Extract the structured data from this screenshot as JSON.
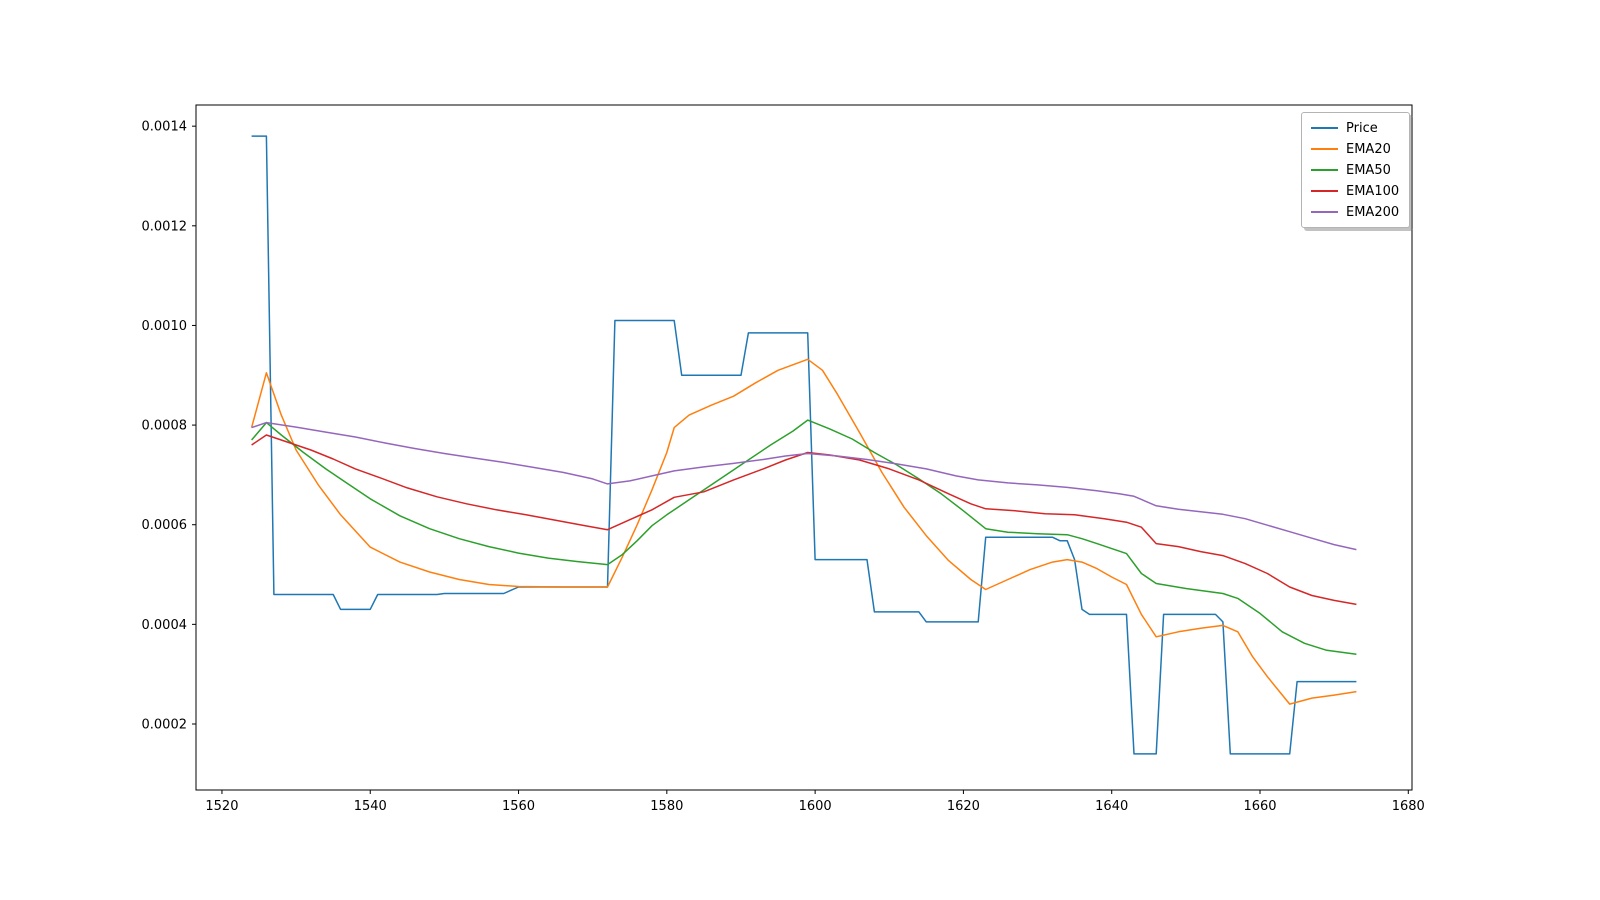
{
  "chart_data": {
    "type": "line",
    "title": "",
    "xlabel": "",
    "ylabel": "",
    "grid": false,
    "legend_position": "upper right",
    "xlim": [
      1516.5,
      1680.5
    ],
    "ylim": [
      6.75e-05,
      0.0014425
    ],
    "x_ticks": [
      1520,
      1540,
      1560,
      1580,
      1600,
      1620,
      1640,
      1660,
      1680
    ],
    "x_tick_labels": [
      "1520",
      "1540",
      "1560",
      "1580",
      "1600",
      "1620",
      "1640",
      "1660",
      "1680"
    ],
    "y_ticks": [
      0.0002,
      0.0004,
      0.0006,
      0.0008,
      0.001,
      0.0012,
      0.0014
    ],
    "y_tick_labels": [
      "0.0002",
      "0.0004",
      "0.0006",
      "0.0008",
      "0.0010",
      "0.0012",
      "0.0014"
    ],
    "series": [
      {
        "name": "Price",
        "color": "#1f77b4",
        "points": [
          [
            1524,
            0.00138
          ],
          [
            1526,
            0.00138
          ],
          [
            1527,
            0.00046
          ],
          [
            1535,
            0.00046
          ],
          [
            1536,
            0.00043
          ],
          [
            1540,
            0.00043
          ],
          [
            1541,
            0.00046
          ],
          [
            1549,
            0.00046
          ],
          [
            1550,
            0.000462
          ],
          [
            1558,
            0.000462
          ],
          [
            1560,
            0.000475
          ],
          [
            1572,
            0.000475
          ],
          [
            1573,
            0.00101
          ],
          [
            1581,
            0.00101
          ],
          [
            1582,
            0.0009
          ],
          [
            1590,
            0.0009
          ],
          [
            1591,
            0.000985
          ],
          [
            1599,
            0.000985
          ],
          [
            1600,
            0.00053
          ],
          [
            1607,
            0.00053
          ],
          [
            1608,
            0.000425
          ],
          [
            1614,
            0.000425
          ],
          [
            1615,
            0.000405
          ],
          [
            1622,
            0.000405
          ],
          [
            1623,
            0.000575
          ],
          [
            1632,
            0.000575
          ],
          [
            1633,
            0.000568
          ],
          [
            1634,
            0.000568
          ],
          [
            1635,
            0.00053
          ],
          [
            1636,
            0.00043
          ],
          [
            1637,
            0.00042
          ],
          [
            1642,
            0.00042
          ],
          [
            1643,
            0.00014
          ],
          [
            1646,
            0.00014
          ],
          [
            1647,
            0.00042
          ],
          [
            1654,
            0.00042
          ],
          [
            1655,
            0.000405
          ],
          [
            1656,
            0.00014
          ],
          [
            1664,
            0.00014
          ],
          [
            1665,
            0.000285
          ],
          [
            1673,
            0.000285
          ]
        ]
      },
      {
        "name": "EMA20",
        "color": "#ff7f0e",
        "points": [
          [
            1524,
            0.000795
          ],
          [
            1526,
            0.000905
          ],
          [
            1528,
            0.00082
          ],
          [
            1530,
            0.00075
          ],
          [
            1533,
            0.00068
          ],
          [
            1536,
            0.00062
          ],
          [
            1540,
            0.000555
          ],
          [
            1544,
            0.000525
          ],
          [
            1548,
            0.000505
          ],
          [
            1552,
            0.00049
          ],
          [
            1556,
            0.00048
          ],
          [
            1560,
            0.000476
          ],
          [
            1566,
            0.000475
          ],
          [
            1572,
            0.000475
          ],
          [
            1574,
            0.000535
          ],
          [
            1576,
            0.0006
          ],
          [
            1578,
            0.00067
          ],
          [
            1580,
            0.000745
          ],
          [
            1581,
            0.000795
          ],
          [
            1583,
            0.00082
          ],
          [
            1586,
            0.00084
          ],
          [
            1589,
            0.000858
          ],
          [
            1592,
            0.000885
          ],
          [
            1595,
            0.00091
          ],
          [
            1599,
            0.000932
          ],
          [
            1601,
            0.00091
          ],
          [
            1603,
            0.000862
          ],
          [
            1606,
            0.000785
          ],
          [
            1609,
            0.000705
          ],
          [
            1612,
            0.000635
          ],
          [
            1615,
            0.000578
          ],
          [
            1618,
            0.000528
          ],
          [
            1621,
            0.00049
          ],
          [
            1623,
            0.00047
          ],
          [
            1626,
            0.00049
          ],
          [
            1629,
            0.00051
          ],
          [
            1632,
            0.000525
          ],
          [
            1634,
            0.00053
          ],
          [
            1636,
            0.000525
          ],
          [
            1638,
            0.000512
          ],
          [
            1640,
            0.000495
          ],
          [
            1642,
            0.00048
          ],
          [
            1644,
            0.00042
          ],
          [
            1646,
            0.000375
          ],
          [
            1649,
            0.000385
          ],
          [
            1652,
            0.000392
          ],
          [
            1655,
            0.000398
          ],
          [
            1657,
            0.000385
          ],
          [
            1659,
            0.000335
          ],
          [
            1661,
            0.000295
          ],
          [
            1664,
            0.00024
          ],
          [
            1667,
            0.000252
          ],
          [
            1670,
            0.000258
          ],
          [
            1673,
            0.000265
          ]
        ]
      },
      {
        "name": "EMA50",
        "color": "#2ca02c",
        "points": [
          [
            1524,
            0.00077
          ],
          [
            1526,
            0.000805
          ],
          [
            1528,
            0.00078
          ],
          [
            1531,
            0.000745
          ],
          [
            1534,
            0.000712
          ],
          [
            1537,
            0.000682
          ],
          [
            1540,
            0.000652
          ],
          [
            1544,
            0.000618
          ],
          [
            1548,
            0.000592
          ],
          [
            1552,
            0.000572
          ],
          [
            1556,
            0.000556
          ],
          [
            1560,
            0.000543
          ],
          [
            1564,
            0.000533
          ],
          [
            1568,
            0.000526
          ],
          [
            1572,
            0.00052
          ],
          [
            1574,
            0.00054
          ],
          [
            1576,
            0.000568
          ],
          [
            1578,
            0.000598
          ],
          [
            1580,
            0.00062
          ],
          [
            1583,
            0.00065
          ],
          [
            1586,
            0.00068
          ],
          [
            1590,
            0.00072
          ],
          [
            1594,
            0.00076
          ],
          [
            1597,
            0.000788
          ],
          [
            1599,
            0.00081
          ],
          [
            1602,
            0.000792
          ],
          [
            1605,
            0.000772
          ],
          [
            1608,
            0.000745
          ],
          [
            1611,
            0.00072
          ],
          [
            1614,
            0.000692
          ],
          [
            1617,
            0.000662
          ],
          [
            1620,
            0.000628
          ],
          [
            1623,
            0.000592
          ],
          [
            1626,
            0.000585
          ],
          [
            1630,
            0.000582
          ],
          [
            1634,
            0.00058
          ],
          [
            1636,
            0.000572
          ],
          [
            1638,
            0.000562
          ],
          [
            1640,
            0.000552
          ],
          [
            1642,
            0.000542
          ],
          [
            1644,
            0.000502
          ],
          [
            1646,
            0.000482
          ],
          [
            1650,
            0.000472
          ],
          [
            1653,
            0.000466
          ],
          [
            1655,
            0.000462
          ],
          [
            1657,
            0.000452
          ],
          [
            1660,
            0.000422
          ],
          [
            1663,
            0.000385
          ],
          [
            1666,
            0.000362
          ],
          [
            1669,
            0.000348
          ],
          [
            1673,
            0.00034
          ]
        ]
      },
      {
        "name": "EMA100",
        "color": "#d62728",
        "points": [
          [
            1524,
            0.00076
          ],
          [
            1526,
            0.00078
          ],
          [
            1529,
            0.000765
          ],
          [
            1532,
            0.00075
          ],
          [
            1535,
            0.000732
          ],
          [
            1538,
            0.000712
          ],
          [
            1541,
            0.000696
          ],
          [
            1545,
            0.000674
          ],
          [
            1549,
            0.000656
          ],
          [
            1553,
            0.000642
          ],
          [
            1557,
            0.00063
          ],
          [
            1561,
            0.00062
          ],
          [
            1565,
            0.000609
          ],
          [
            1569,
            0.000598
          ],
          [
            1572,
            0.00059
          ],
          [
            1575,
            0.00061
          ],
          [
            1578,
            0.00063
          ],
          [
            1581,
            0.000655
          ],
          [
            1585,
            0.000666
          ],
          [
            1589,
            0.00069
          ],
          [
            1593,
            0.000712
          ],
          [
            1596,
            0.00073
          ],
          [
            1599,
            0.000745
          ],
          [
            1602,
            0.00074
          ],
          [
            1606,
            0.00073
          ],
          [
            1610,
            0.000712
          ],
          [
            1614,
            0.00069
          ],
          [
            1618,
            0.000662
          ],
          [
            1621,
            0.000642
          ],
          [
            1623,
            0.000632
          ],
          [
            1627,
            0.000628
          ],
          [
            1631,
            0.000622
          ],
          [
            1635,
            0.00062
          ],
          [
            1639,
            0.000612
          ],
          [
            1642,
            0.000605
          ],
          [
            1644,
            0.000595
          ],
          [
            1646,
            0.000562
          ],
          [
            1649,
            0.000556
          ],
          [
            1652,
            0.000546
          ],
          [
            1655,
            0.000538
          ],
          [
            1658,
            0.000522
          ],
          [
            1661,
            0.000502
          ],
          [
            1664,
            0.000475
          ],
          [
            1667,
            0.000458
          ],
          [
            1670,
            0.000448
          ],
          [
            1673,
            0.00044
          ]
        ]
      },
      {
        "name": "EMA200",
        "color": "#9467bd",
        "points": [
          [
            1524,
            0.000795
          ],
          [
            1526,
            0.000805
          ],
          [
            1530,
            0.000796
          ],
          [
            1534,
            0.000786
          ],
          [
            1538,
            0.000776
          ],
          [
            1542,
            0.000764
          ],
          [
            1546,
            0.000753
          ],
          [
            1550,
            0.000743
          ],
          [
            1554,
            0.000734
          ],
          [
            1558,
            0.000725
          ],
          [
            1562,
            0.000715
          ],
          [
            1566,
            0.000705
          ],
          [
            1570,
            0.000692
          ],
          [
            1572,
            0.000682
          ],
          [
            1575,
            0.000688
          ],
          [
            1578,
            0.000698
          ],
          [
            1581,
            0.000708
          ],
          [
            1585,
            0.000716
          ],
          [
            1589,
            0.000723
          ],
          [
            1593,
            0.000731
          ],
          [
            1596,
            0.000738
          ],
          [
            1599,
            0.000743
          ],
          [
            1603,
            0.000738
          ],
          [
            1607,
            0.000731
          ],
          [
            1611,
            0.000722
          ],
          [
            1615,
            0.000712
          ],
          [
            1619,
            0.000698
          ],
          [
            1622,
            0.00069
          ],
          [
            1626,
            0.000684
          ],
          [
            1630,
            0.00068
          ],
          [
            1634,
            0.000675
          ],
          [
            1638,
            0.000668
          ],
          [
            1641,
            0.000662
          ],
          [
            1643,
            0.000657
          ],
          [
            1646,
            0.000638
          ],
          [
            1649,
            0.000631
          ],
          [
            1652,
            0.000626
          ],
          [
            1655,
            0.000621
          ],
          [
            1658,
            0.000612
          ],
          [
            1661,
            0.000599
          ],
          [
            1664,
            0.000586
          ],
          [
            1667,
            0.000573
          ],
          [
            1670,
            0.00056
          ],
          [
            1673,
            0.00055
          ]
        ]
      }
    ]
  }
}
